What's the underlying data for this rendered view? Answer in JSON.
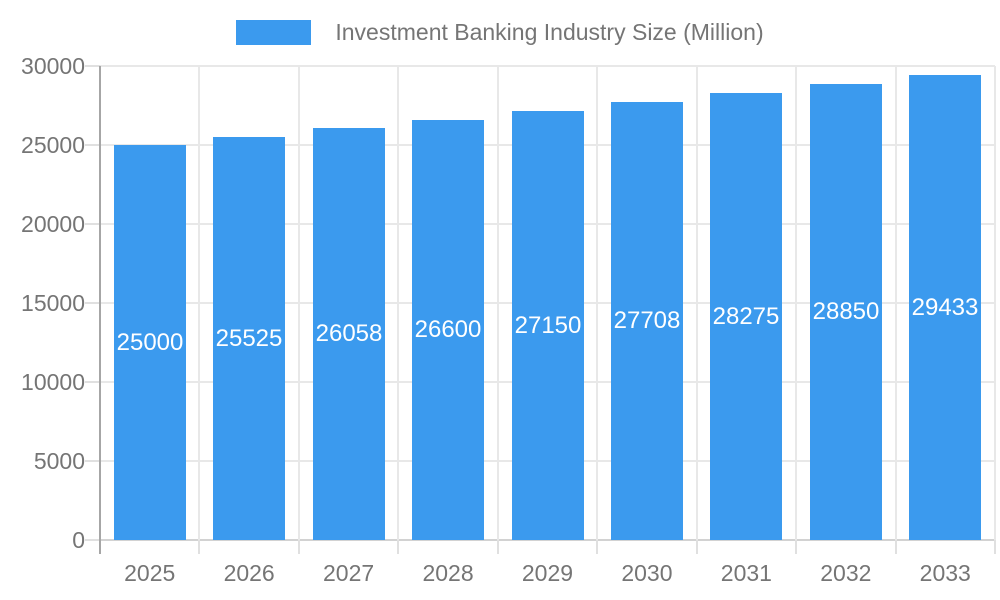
{
  "chart_data": {
    "type": "bar",
    "title": "Investment Banking Industry Size (Million)",
    "legend": {
      "position": "top",
      "entries": [
        "Investment Banking Industry Size (Million)"
      ]
    },
    "categories": [
      "2025",
      "2026",
      "2027",
      "2028",
      "2029",
      "2030",
      "2031",
      "2032",
      "2033"
    ],
    "values": [
      25000,
      25525,
      26058,
      26600,
      27150,
      27708,
      28275,
      28850,
      29433
    ],
    "xlabel": "",
    "ylabel": "",
    "ylim": [
      0,
      30000
    ],
    "yticks": [
      0,
      5000,
      10000,
      15000,
      20000,
      25000,
      30000
    ],
    "grid": true,
    "value_labels": "inside-center",
    "colors": {
      "bar": "#3B9AEE",
      "grid": "#E8E8E8",
      "baseline": "#D2D2D2",
      "axis_line": "#A6A6A6",
      "tick": "#E0E0E0",
      "axis_text": "#757575",
      "value_text": "#FFFFFF",
      "background": "#FFFFFF"
    }
  }
}
